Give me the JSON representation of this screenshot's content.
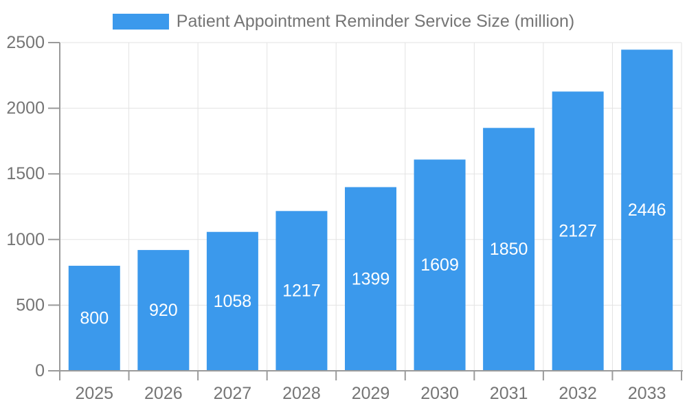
{
  "legend": {
    "label": "Patient Appointment Reminder Service Size (million)"
  },
  "chart_data": {
    "type": "bar",
    "title": "Patient Appointment Reminder Service Size (million)",
    "categories": [
      "2025",
      "2026",
      "2027",
      "2028",
      "2029",
      "2030",
      "2031",
      "2032",
      "2033"
    ],
    "values": [
      800,
      920,
      1058,
      1217,
      1399,
      1609,
      1850,
      2127,
      2446
    ],
    "series": [
      {
        "name": "Patient Appointment Reminder Service Size (million)",
        "values": [
          800,
          920,
          1058,
          1217,
          1399,
          1609,
          1850,
          2127,
          2446
        ]
      }
    ],
    "xlabel": "",
    "ylabel": "",
    "ylim": [
      0,
      2500
    ],
    "y_ticks": [
      0,
      500,
      1000,
      1500,
      2000,
      2500
    ],
    "grid": true,
    "legend_position": "top",
    "bar_labels_shown": true,
    "colors": {
      "bar": "#3b99ec",
      "axis_line": "#9a9a9a",
      "gridline": "#e3e3e3",
      "tick_label": "#757575",
      "legend_text": "#757575",
      "bar_value_label": "#ffffff",
      "background": "#ffffff"
    }
  }
}
